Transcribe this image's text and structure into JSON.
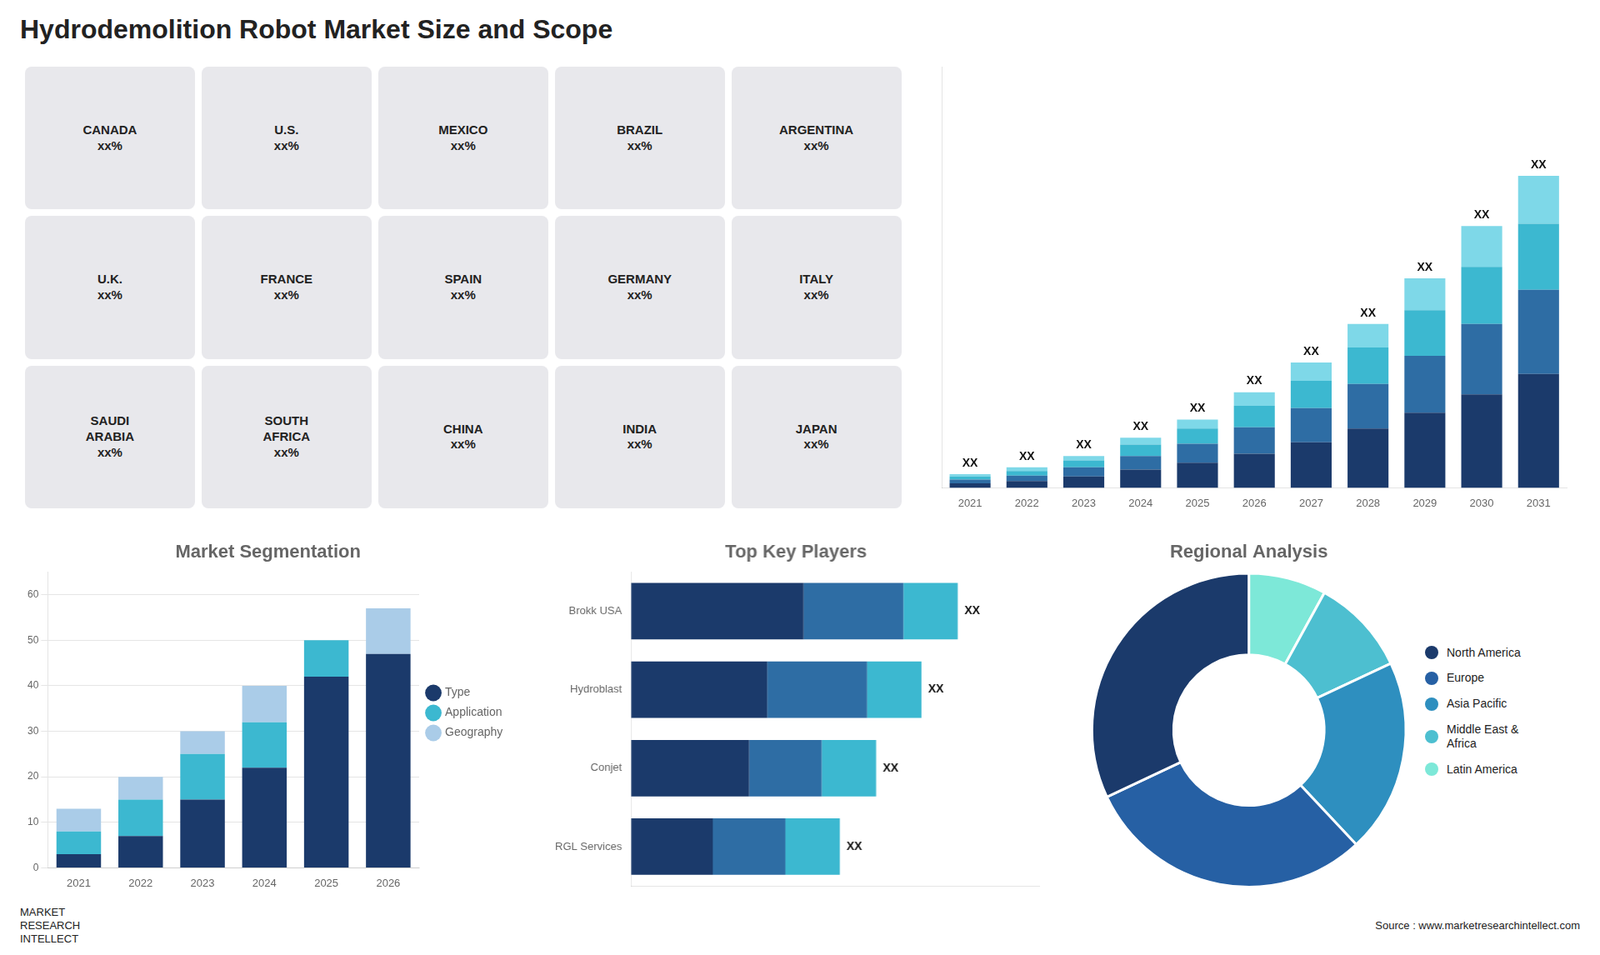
{
  "chart_data": [
    {
      "type": "bar",
      "title": "Hydrodemolition Robot Market Size and Scope",
      "categories": [
        "2021",
        "2022",
        "2023",
        "2024",
        "2025",
        "2026",
        "2027",
        "2028",
        "2029",
        "2030",
        "2031"
      ],
      "series": [
        {
          "color": "#1b3a6b",
          "values": [
            1.0,
            1.5,
            2.5,
            4.0,
            5.5,
            7.5,
            10.0,
            13.0,
            16.5,
            20.5,
            25.0
          ]
        },
        {
          "color": "#2e6da4",
          "values": [
            0.8,
            1.2,
            2.0,
            3.0,
            4.2,
            5.8,
            7.5,
            9.8,
            12.5,
            15.5,
            18.5
          ]
        },
        {
          "color": "#3cb8d0",
          "values": [
            0.7,
            1.0,
            1.5,
            2.5,
            3.3,
            4.7,
            6.0,
            8.0,
            10.0,
            12.5,
            14.5
          ]
        },
        {
          "color": "#7ed8e8",
          "values": [
            0.5,
            0.8,
            1.0,
            1.5,
            2.0,
            3.0,
            4.0,
            5.2,
            7.0,
            9.0,
            10.5
          ]
        }
      ],
      "stacked": true,
      "ylim": [
        0,
        92.475
      ],
      "yticks": [],
      "tick_labels": "x",
      "grid": false,
      "annotations": [
        {
          "category": "2021",
          "text": "XX"
        },
        {
          "category": "2022",
          "text": "XX"
        },
        {
          "category": "2023",
          "text": "XX"
        },
        {
          "category": "2024",
          "text": "XX"
        },
        {
          "category": "2025",
          "text": "XX"
        },
        {
          "category": "2026",
          "text": "XX"
        },
        {
          "category": "2027",
          "text": "XX"
        },
        {
          "category": "2028",
          "text": "XX"
        },
        {
          "category": "2029",
          "text": "XX"
        },
        {
          "category": "2030",
          "text": "XX"
        },
        {
          "category": "2031",
          "text": "XX"
        },
        {
          "text": "CANADA\nxx%"
        },
        {
          "text": "U.S.\nxx%"
        },
        {
          "text": "MEXICO\nxx%"
        },
        {
          "text": "BRAZIL\nxx%"
        },
        {
          "text": "ARGENTINA\nxx%"
        },
        {
          "text": "U.K.\nxx%"
        },
        {
          "text": "FRANCE\nxx%"
        },
        {
          "text": "SPAIN\nxx%"
        },
        {
          "text": "GERMANY\nxx%"
        },
        {
          "text": "ITALY\nxx%"
        },
        {
          "text": "SAUDI\nARABIA\nxx%"
        },
        {
          "text": "SOUTH\nAFRICA\nxx%"
        },
        {
          "text": "CHINA\nxx%"
        },
        {
          "text": "INDIA\nxx%"
        },
        {
          "text": "JAPAN\nxx%"
        }
      ]
    },
    {
      "type": "bar",
      "title": "Market Segmentation",
      "categories": [
        "2021",
        "2022",
        "2023",
        "2024",
        "2025",
        "2026"
      ],
      "series": [
        {
          "name": "Type",
          "color": "#1b3a6b",
          "values": [
            3,
            7,
            15,
            22,
            42,
            47
          ]
        },
        {
          "name": "Application",
          "color": "#3cb8d0",
          "values": [
            5,
            8,
            10,
            10,
            8,
            0
          ]
        },
        {
          "name": "Geography",
          "color": "#aacce8",
          "values": [
            5,
            5,
            5,
            8,
            0,
            10
          ]
        }
      ],
      "stacked": true,
      "ylim": [
        0,
        65
      ],
      "yticks": [
        0,
        10,
        20,
        30,
        40,
        50,
        60
      ],
      "grid": true,
      "legend": "right"
    },
    {
      "type": "bar",
      "orientation": "horizontal",
      "title": "Top Key Players",
      "categories": [
        "Brokk USA",
        "Hydroblast",
        "Conjet",
        "RGL Services"
      ],
      "series": [
        {
          "color": "#1b3a6b",
          "values": [
            38,
            30,
            26,
            18
          ]
        },
        {
          "color": "#2e6da4",
          "values": [
            22,
            22,
            16,
            16
          ]
        },
        {
          "color": "#3cb8d0",
          "values": [
            12,
            12,
            12,
            12
          ]
        }
      ],
      "stacked": true,
      "xlim": [
        0,
        90
      ],
      "xticks": [],
      "tick_labels": "y",
      "grid": false,
      "annotations": [
        {
          "category": "Brokk USA",
          "text": "XX"
        },
        {
          "category": "Hydroblast",
          "text": "XX"
        },
        {
          "category": "Conjet",
          "text": "XX"
        },
        {
          "category": "RGL Services",
          "text": "XX"
        }
      ]
    },
    {
      "type": "doughnut",
      "title": "Regional Analysis",
      "categories": [
        "Latin America",
        "Middle East &\nAfrica",
        "Asia Pacific",
        "Europe",
        "North America"
      ],
      "values": [
        8,
        10,
        20,
        30,
        32
      ],
      "colors": [
        "#7de8d8",
        "#4dbfd0",
        "#2e8fbf",
        "#2660a4",
        "#1b3a6b"
      ],
      "legend": "right",
      "annotations": [
        {
          "text": "MARKET\nRESEARCH\nINTELLECT"
        },
        {
          "text": "Source : www.marketresearchintellect.com"
        }
      ]
    }
  ]
}
